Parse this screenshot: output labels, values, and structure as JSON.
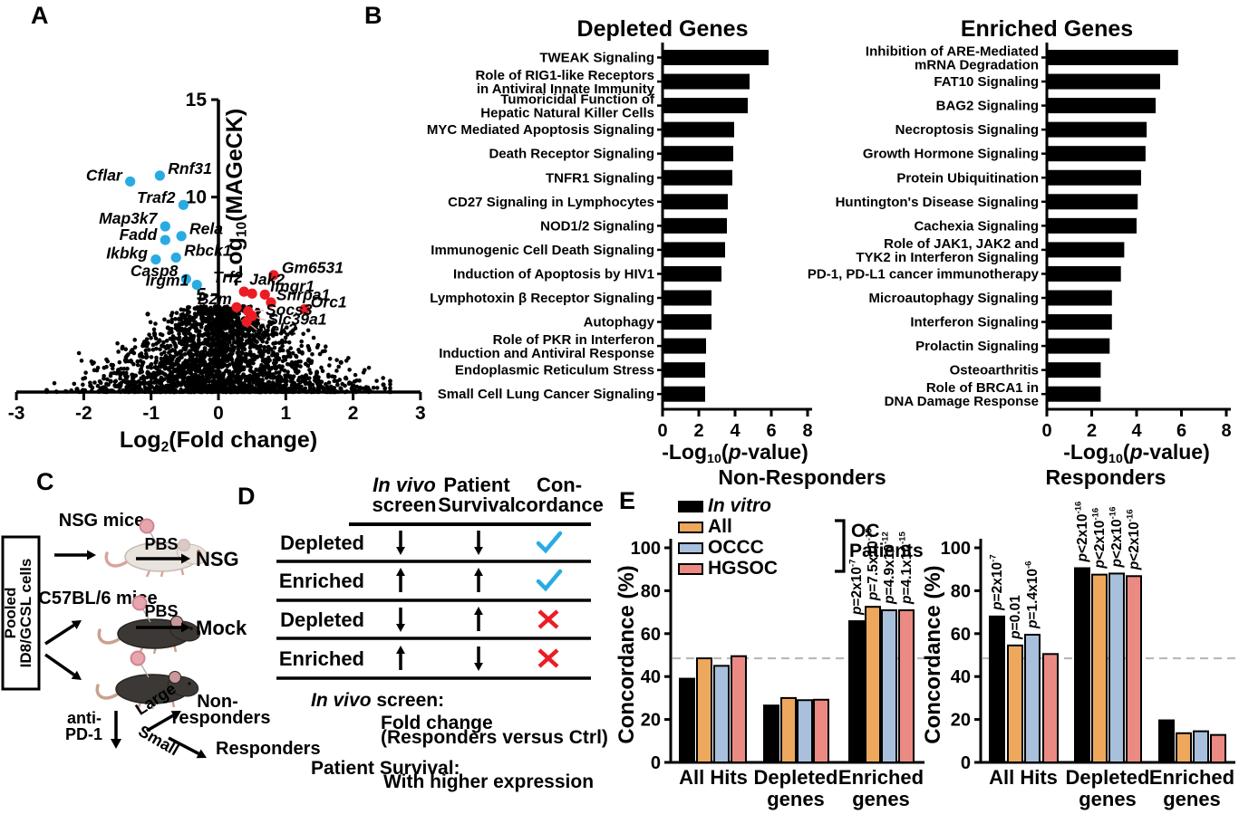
{
  "figure": {
    "panel_labels": {
      "a": "A",
      "b": "B",
      "c": "C",
      "d": "D",
      "e": "E"
    }
  },
  "colors": {
    "in_vitro": "#000000",
    "all": "#eda85e",
    "occc": "#a8c0dc",
    "hgsoc": "#ea8a82",
    "depleted_point": "#29abe2",
    "enriched_point": "#ec1c24",
    "check": "#29abe2",
    "cross": "#ec1c24",
    "reference_line": "#b9b9b9",
    "leader_line": "#f0a3a3"
  },
  "chart_data": [
    {
      "id": "volcano",
      "type": "scatter",
      "xlabel": "Log~2~(Fold change)",
      "ylabel": "-Log~10~(MAGeCK)",
      "xlim": [
        -3,
        3
      ],
      "xticks": [
        -3,
        -2,
        -1,
        0,
        1,
        2,
        3
      ],
      "ylim": [
        0,
        15
      ],
      "yticks": [
        5,
        10,
        15
      ],
      "series": [
        {
          "name": "depleted",
          "color_key": "depleted_point",
          "points": [
            {
              "gene": "Cflar",
              "x": -1.31,
              "y": 10.8,
              "lx": -1.43,
              "ly": 10.85,
              "anchor": "end",
              "leader": false
            },
            {
              "gene": "Rnf31",
              "x": -0.87,
              "y": 11.1,
              "lx": -0.75,
              "ly": 11.2,
              "anchor": "start",
              "leader": false
            },
            {
              "gene": "Traf2",
              "x": -0.52,
              "y": 9.6,
              "lx": -0.64,
              "ly": 9.7,
              "anchor": "end",
              "leader": false
            },
            {
              "gene": "Map3k7",
              "x": -0.79,
              "y": 8.5,
              "lx": -0.91,
              "ly": 8.65,
              "anchor": "end",
              "leader": false
            },
            {
              "gene": "Rela",
              "x": -0.55,
              "y": 8.0,
              "lx": -0.43,
              "ly": 8.1,
              "anchor": "start",
              "leader": false
            },
            {
              "gene": "Fadd",
              "x": -0.79,
              "y": 7.8,
              "lx": -0.91,
              "ly": 7.8,
              "anchor": "end",
              "leader": false
            },
            {
              "gene": "Ikbkg",
              "x": -0.93,
              "y": 6.8,
              "lx": -1.05,
              "ly": 6.85,
              "anchor": "end",
              "leader": false
            },
            {
              "gene": "Rbck1",
              "x": -0.63,
              "y": 6.9,
              "lx": -0.51,
              "ly": 7.0,
              "anchor": "start",
              "leader": false
            },
            {
              "gene": "Casp8",
              "x": -0.48,
              "y": 5.8,
              "lx": -0.6,
              "ly": 5.95,
              "anchor": "end",
              "leader": false
            },
            {
              "gene": "Irgm1",
              "x": -0.32,
              "y": 5.5,
              "lx": -0.44,
              "ly": 5.45,
              "anchor": "end",
              "leader": false
            }
          ]
        },
        {
          "name": "enriched",
          "color_key": "enriched_point",
          "points": [
            {
              "gene": "Gm6531",
              "x": 0.82,
              "y": 6.0,
              "lx": 0.94,
              "ly": 6.1,
              "anchor": "start",
              "leader": false
            },
            {
              "gene": "Trf2",
              "x": 0.38,
              "y": 5.15,
              "lx": 0.36,
              "ly": 5.62,
              "anchor": "end",
              "leader": false
            },
            {
              "gene": "Jak2",
              "x": 0.5,
              "y": 5.05,
              "lx": 0.46,
              "ly": 5.5,
              "anchor": "start",
              "leader": false
            },
            {
              "gene": "Ifngr1",
              "x": 0.69,
              "y": 5.0,
              "lx": 0.77,
              "ly": 5.15,
              "anchor": "start",
              "leader": false
            },
            {
              "gene": "B2m",
              "x": 0.27,
              "y": 4.35,
              "lx": 0.2,
              "ly": 4.5,
              "anchor": "end",
              "leader": false
            },
            {
              "gene": "Snrpa1",
              "x": 0.78,
              "y": 4.6,
              "lx": 0.86,
              "ly": 4.72,
              "anchor": "start",
              "leader": false
            },
            {
              "gene": "Orc1",
              "x": 1.28,
              "y": 4.25,
              "lx": 1.37,
              "ly": 4.35,
              "anchor": "start",
              "leader": false
            },
            {
              "gene": "Socs3",
              "x": 0.44,
              "y": 4.15,
              "lx": 0.7,
              "ly": 3.95,
              "anchor": "start",
              "leader": true
            },
            {
              "gene": "Slc39a1",
              "x": 0.5,
              "y": 3.9,
              "lx": 0.73,
              "ly": 3.45,
              "anchor": "start",
              "leader": true
            },
            {
              "gene": "Nek2",
              "x": 0.42,
              "y": 3.6,
              "lx": 0.6,
              "ly": 2.95,
              "anchor": "start",
              "leader": true
            }
          ]
        }
      ],
      "background_cloud": {
        "seed": 12345,
        "n": 2400,
        "dot_radius": 2.3,
        "outliers": [
          [
            -1.9,
            0.33
          ],
          [
            -2.1,
            0.15
          ],
          [
            1.82,
            1.52
          ],
          [
            2.45,
            0.38
          ],
          [
            1.62,
            0.25
          ],
          [
            1.3,
            0.85
          ],
          [
            1.12,
            1.35
          ],
          [
            -1.45,
            0.95
          ],
          [
            -1.3,
            1.6
          ],
          [
            -1.28,
            2.15
          ],
          [
            -1.05,
            2.5
          ],
          [
            -0.95,
            3.0
          ],
          [
            0.95,
            2.55
          ],
          [
            1.05,
            2.0
          ],
          [
            -1.6,
            0.55
          ],
          [
            -1.5,
            0.3
          ],
          [
            1.45,
            0.55
          ],
          [
            -1.05,
            4.0
          ],
          [
            -0.75,
            3.3
          ],
          [
            0.85,
            3.0
          ],
          [
            1.0,
            0.55
          ],
          [
            -1.15,
            1.15
          ],
          [
            1.15,
            0.2
          ],
          [
            2.0,
            0.12
          ],
          [
            -1.75,
            0.18
          ]
        ]
      }
    },
    {
      "id": "depleted_pathways",
      "type": "bar",
      "orientation": "horizontal",
      "title": "Depleted Genes",
      "xlabel": "-Log~10~(*p*-value)",
      "xlim": [
        0,
        8
      ],
      "xticks": [
        0,
        2,
        4,
        6,
        8
      ],
      "categories": [
        [
          "TWEAK Signaling"
        ],
        [
          "Role of RIG1-like Receptors",
          "in Antiviral Innate Immunity"
        ],
        [
          "Tumoricidal Function of",
          "Hepatic Natural Killer Cells"
        ],
        [
          "MYC Mediated Apoptosis Signaling"
        ],
        [
          "Death Receptor Signaling"
        ],
        [
          "TNFR1 Signaling"
        ],
        [
          "CD27 Signaling in Lymphocytes"
        ],
        [
          "NOD1/2 Signaling"
        ],
        [
          "Immunogenic Cell Death Signaling"
        ],
        [
          "Induction of Apoptosis by HIV1"
        ],
        [
          "Lymphotoxin β Receptor Signaling"
        ],
        [
          "Autophagy"
        ],
        [
          "Role of PKR in Interferon",
          "Induction and Antiviral Response"
        ],
        [
          "Endoplasmic Reticulum Stress"
        ],
        [
          "Small Cell Lung Cancer Signaling"
        ]
      ],
      "values": [
        5.85,
        4.8,
        4.7,
        3.95,
        3.9,
        3.85,
        3.6,
        3.55,
        3.45,
        3.25,
        2.7,
        2.7,
        2.4,
        2.35,
        2.35
      ]
    },
    {
      "id": "enriched_pathways",
      "type": "bar",
      "orientation": "horizontal",
      "title": "Enriched Genes",
      "xlabel": "-Log~10~(*p*-value)",
      "xlim": [
        0,
        8
      ],
      "xticks": [
        0,
        2,
        4,
        6,
        8
      ],
      "categories": [
        [
          "Inhibition of ARE-Mediated",
          "mRNA Degradation"
        ],
        [
          "FAT10 Signaling"
        ],
        [
          "BAG2 Signaling"
        ],
        [
          "Necroptosis Signaling"
        ],
        [
          "Growth Hormone Signaling"
        ],
        [
          "Protein Ubiquitination"
        ],
        [
          "Huntington's Disease Signaling"
        ],
        [
          "Cachexia Signaling"
        ],
        [
          "Role of JAK1, JAK2 and",
          "TYK2 in Interferon Signaling"
        ],
        [
          "PD-1, PD-L1 cancer immunotherapy"
        ],
        [
          "Microautophagy Signaling"
        ],
        [
          "Interferon Signaling"
        ],
        [
          "Prolactin Signaling"
        ],
        [
          "Osteoarthritis"
        ],
        [
          "Role of BRCA1 in",
          "DNA Damage Response"
        ]
      ],
      "values": [
        5.85,
        5.05,
        4.85,
        4.45,
        4.4,
        4.2,
        4.05,
        4.0,
        3.45,
        3.3,
        2.9,
        2.9,
        2.8,
        2.4,
        2.4
      ]
    },
    {
      "id": "concordance_non_responders",
      "type": "bar",
      "title": "Non-Responders",
      "ylabel": "Concordance (%)",
      "ylim": [
        0,
        100
      ],
      "yticks": [
        0,
        20,
        40,
        60,
        80,
        100
      ],
      "reference_line": 48.5,
      "categories": [
        [
          "All Hits"
        ],
        [
          "Depleted",
          "genes"
        ],
        [
          "Enriched",
          "genes"
        ]
      ],
      "series": [
        {
          "name": "*In vitro*",
          "color_key": "in_vitro",
          "values": [
            39,
            26.5,
            65.8
          ],
          "pvalues": [
            null,
            null,
            "*p*=2x10^-7^"
          ]
        },
        {
          "name": "All",
          "color_key": "all",
          "values": [
            48.5,
            30,
            72.5
          ],
          "pvalues": [
            null,
            null,
            "*p*=7.5x10^-15^"
          ]
        },
        {
          "name": "OCCC",
          "color_key": "occc",
          "values": [
            45,
            29,
            70.9
          ],
          "pvalues": [
            null,
            null,
            "*p*=4.9x10^-12^"
          ]
        },
        {
          "name": "HGSOC",
          "color_key": "hgsoc",
          "values": [
            49.5,
            29.2,
            70.9
          ],
          "pvalues": [
            null,
            null,
            "*p*=4.1x10^-15^"
          ]
        }
      ],
      "legend": {
        "items": [
          {
            "label": "*In vitro*",
            "color_key": "in_vitro"
          },
          {
            "label": "All",
            "color_key": "all"
          },
          {
            "label": "OCCC",
            "color_key": "occc"
          },
          {
            "label": "HGSOC",
            "color_key": "hgsoc"
          }
        ],
        "bracket_lines": [
          "OC",
          "Patients"
        ]
      }
    },
    {
      "id": "concordance_responders",
      "type": "bar",
      "title": "Responders",
      "ylabel": "Concordance (%)",
      "ylim": [
        0,
        100
      ],
      "yticks": [
        0,
        20,
        40,
        60,
        80,
        100
      ],
      "reference_line": 48.5,
      "categories": [
        [
          "All Hits"
        ],
        [
          "Depleted",
          "genes"
        ],
        [
          "Enriched",
          "genes"
        ]
      ],
      "series": [
        {
          "name": "*In vitro*",
          "color_key": "in_vitro",
          "values": [
            68,
            90.5,
            19.6
          ],
          "pvalues": [
            "*p*=2x10^-7^",
            "*p*<2x10^-16^",
            null
          ]
        },
        {
          "name": "All",
          "color_key": "all",
          "values": [
            54.5,
            87.5,
            13.6
          ],
          "pvalues": [
            "*p*=0.01",
            "*p*<2x10^-16^",
            null
          ]
        },
        {
          "name": "OCCC",
          "color_key": "occc",
          "values": [
            59.5,
            88,
            14.5
          ],
          "pvalues": [
            "*p*=1.4x10^-6^",
            "*p*<2x10^-16^",
            null
          ]
        },
        {
          "name": "HGSOC",
          "color_key": "hgsoc",
          "values": [
            50.5,
            86.8,
            12.8
          ],
          "pvalues": [
            null,
            "*p*<2x10^-16^",
            null
          ]
        }
      ]
    }
  ],
  "panel_c": {
    "box_lines": [
      "Pooled",
      "ID8/GCSL cells"
    ],
    "group1": {
      "mice_label": "NSG mice",
      "treatment": "PBS",
      "result": "NSG"
    },
    "group2": {
      "mice_label": "C57BL/6 mice",
      "treatment": "PBS",
      "result": "Mock"
    },
    "group3": {
      "treatment_lines": [
        "anti-",
        "PD-1"
      ],
      "branch_large": {
        "size_label": "Large",
        "result_lines": [
          "Non-",
          "responders"
        ]
      },
      "branch_small": {
        "size_label": "Small",
        "result_lines": [
          "Responders"
        ]
      }
    }
  },
  "panel_d": {
    "header": [
      [
        "*In vivo*",
        "screen"
      ],
      [
        "Patient",
        "Survival"
      ],
      [
        "Con-",
        "cordance"
      ]
    ],
    "rows": [
      {
        "label": "Depleted",
        "in_vivo": "down",
        "survival": "down",
        "concordance": "check"
      },
      {
        "label": "Enriched",
        "in_vivo": "up",
        "survival": "up",
        "concordance": "check"
      },
      {
        "label": "Depleted",
        "in_vivo": "down",
        "survival": "up",
        "concordance": "cross"
      },
      {
        "label": "Enriched",
        "in_vivo": "up",
        "survival": "down",
        "concordance": "cross"
      }
    ],
    "notes": [
      {
        "title": "*In vivo* screen:",
        "lines": [
          "Fold change",
          "(Responders versus Ctrl)"
        ]
      },
      {
        "title": "Patient Survival:",
        "lines": [
          "With higher expression"
        ]
      }
    ]
  }
}
